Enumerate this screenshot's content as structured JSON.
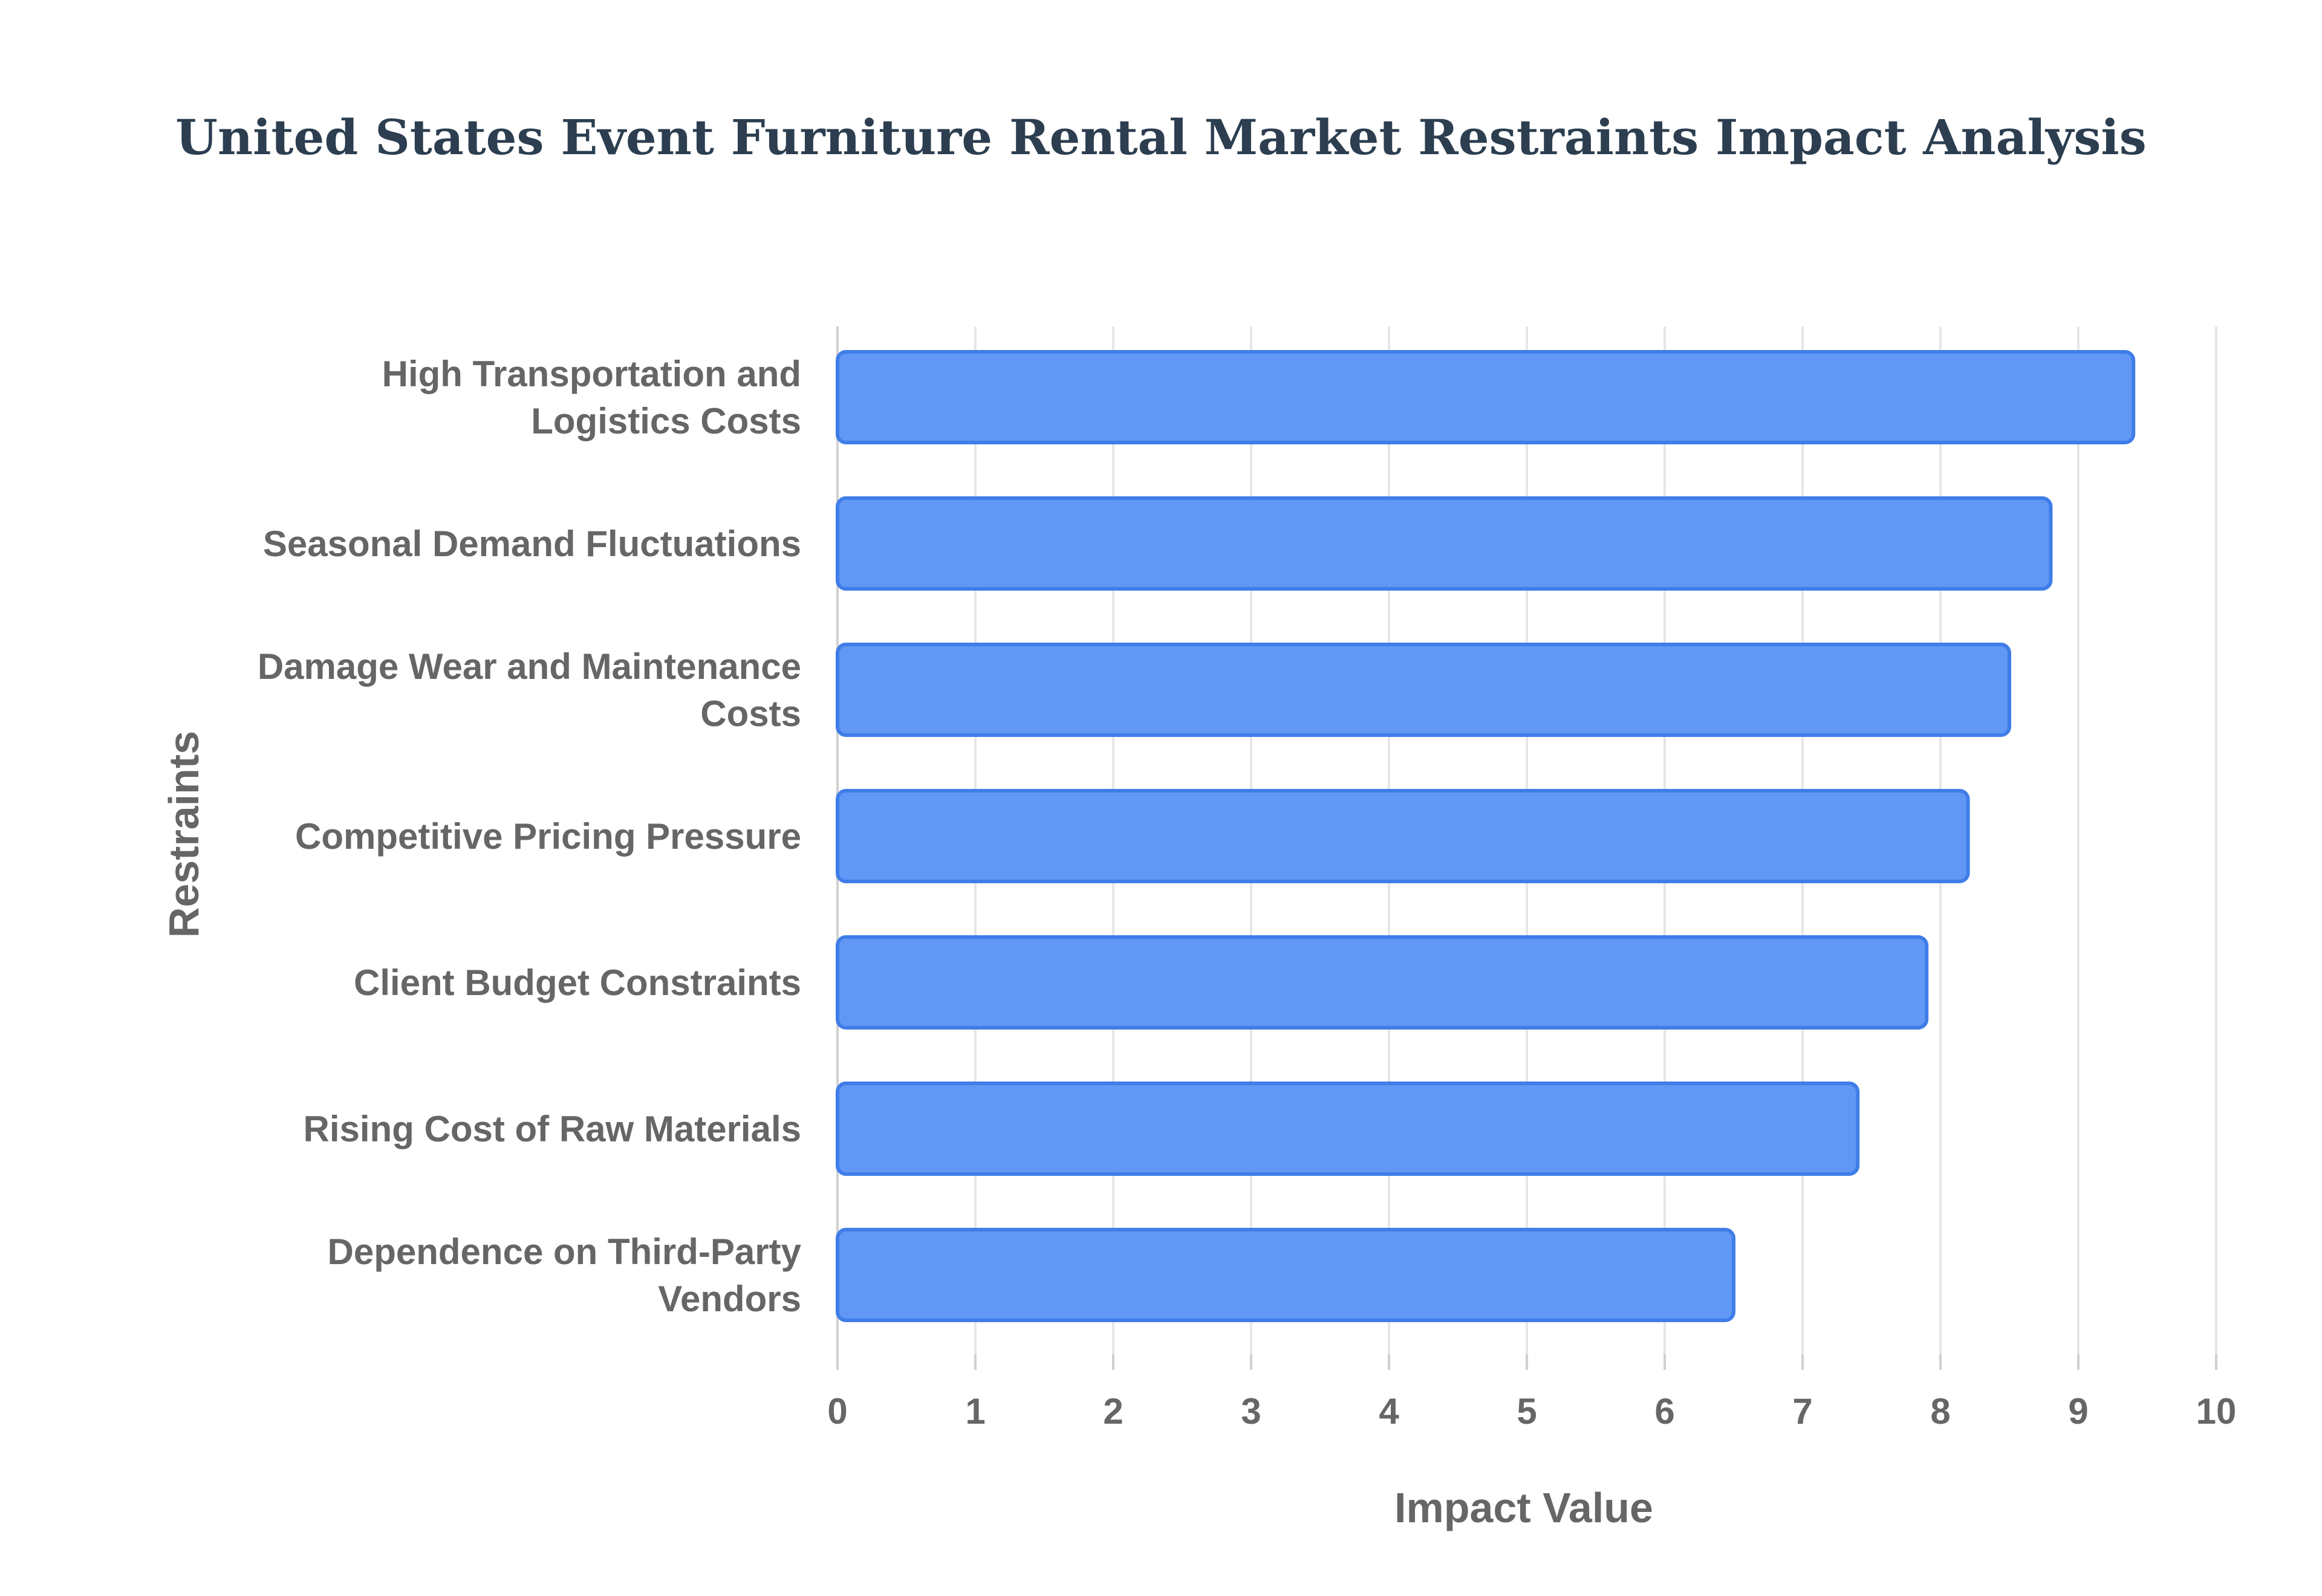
{
  "chart_data": {
    "type": "bar",
    "orientation": "horizontal",
    "title": "United States Event Furniture Rental Market Restraints Impact Analysis",
    "xlabel": "Impact Value",
    "ylabel": "Restraints",
    "categories": [
      [
        "High Transportation and",
        "Logistics Costs"
      ],
      [
        "Seasonal Demand Fluctuations"
      ],
      [
        "Damage Wear and Maintenance",
        "Costs"
      ],
      [
        "Competitive Pricing Pressure"
      ],
      [
        "Client Budget Constraints"
      ],
      [
        "Rising Cost of Raw Materials"
      ],
      [
        "Dependence on Third-Party",
        "Vendors"
      ]
    ],
    "values": [
      9.4,
      8.8,
      8.5,
      8.2,
      7.9,
      7.4,
      6.5
    ],
    "xlim": [
      0,
      10
    ],
    "xticks": [
      "0",
      "1",
      "2",
      "3",
      "4",
      "5",
      "6",
      "7",
      "8",
      "9",
      "10"
    ],
    "grid": true,
    "legend": "none",
    "colors": {
      "bar_fill": "#6198f5",
      "bar_stroke": "#3f7de8",
      "title": "#2c3e50",
      "labels": "#666666"
    }
  }
}
